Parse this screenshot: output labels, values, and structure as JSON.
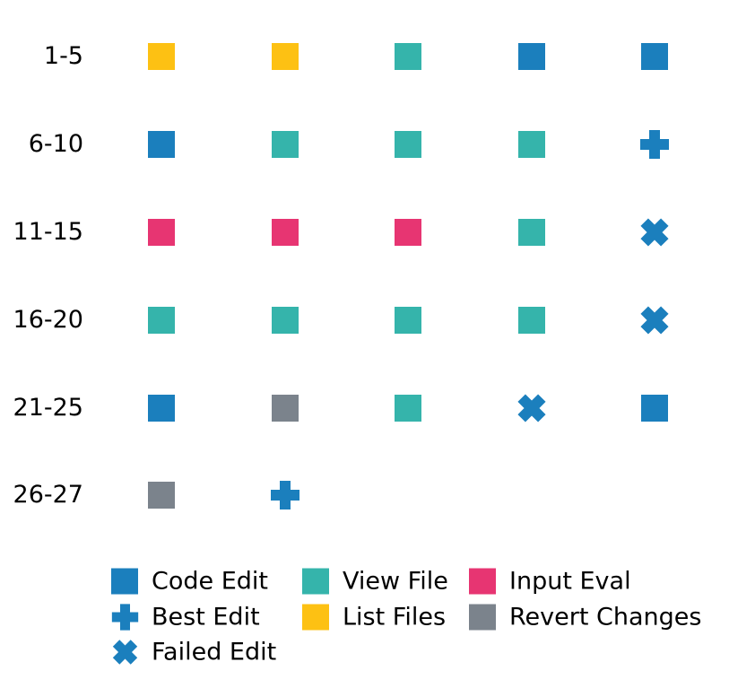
{
  "chart_data": {
    "type": "scatter",
    "title": "",
    "xlabel": "",
    "ylabel": "",
    "grid": false,
    "background": "#ffffff",
    "y_categories": [
      "1-5",
      "6-10",
      "11-15",
      "16-20",
      "21-25",
      "26-27"
    ],
    "rows": [
      {
        "label": "1-5",
        "actions": [
          "List Files",
          "List Files",
          "View File",
          "Code Edit",
          "Code Edit"
        ]
      },
      {
        "label": "6-10",
        "actions": [
          "Code Edit",
          "View File",
          "View File",
          "View File",
          "Best Edit"
        ]
      },
      {
        "label": "11-15",
        "actions": [
          "Input Eval",
          "Input Eval",
          "Input Eval",
          "View File",
          "Failed Edit"
        ]
      },
      {
        "label": "16-20",
        "actions": [
          "View File",
          "View File",
          "View File",
          "View File",
          "Failed Edit"
        ]
      },
      {
        "label": "21-25",
        "actions": [
          "Code Edit",
          "Revert Changes",
          "View File",
          "Failed Edit",
          "Code Edit"
        ]
      },
      {
        "label": "26-27",
        "actions": [
          "Revert Changes",
          "Best Edit"
        ]
      }
    ],
    "marker_styles": {
      "Code Edit": {
        "shape": "square",
        "color": "#1b7fbd"
      },
      "View File": {
        "shape": "square",
        "color": "#35b4ab"
      },
      "Input Eval": {
        "shape": "square",
        "color": "#e73572"
      },
      "Best Edit": {
        "shape": "plus",
        "color": "#1b7fbd"
      },
      "List Files": {
        "shape": "square",
        "color": "#fdc113"
      },
      "Revert Changes": {
        "shape": "square",
        "color": "#7b838c"
      },
      "Failed Edit": {
        "shape": "x",
        "color": "#1b7fbd"
      }
    },
    "legend": {
      "position": "lower center",
      "columns": [
        [
          "Code Edit",
          "Best Edit",
          "Failed Edit"
        ],
        [
          "View File",
          "List Files"
        ],
        [
          "Input Eval",
          "Revert Changes"
        ]
      ]
    }
  }
}
